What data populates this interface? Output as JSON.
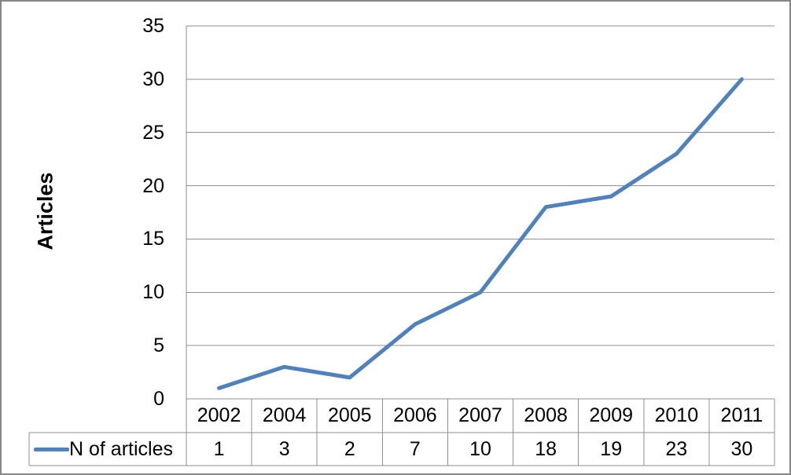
{
  "chart_data": {
    "type": "line",
    "title": "",
    "xlabel": "",
    "ylabel": "Articles",
    "categories": [
      "2002",
      "2004",
      "2005",
      "2006",
      "2007",
      "2008",
      "2009",
      "2010",
      "2011"
    ],
    "series": [
      {
        "name": "N of articles",
        "values": [
          1,
          3,
          2,
          7,
          10,
          18,
          19,
          23,
          30
        ]
      }
    ],
    "ylim": [
      0,
      35
    ],
    "yticks": [
      0,
      5,
      10,
      15,
      20,
      25,
      30,
      35
    ],
    "grid": "horizontal",
    "legend_position": "data-table-left",
    "line_color": "#4F81BD",
    "gridline_color": "#8F8F8F",
    "axis_text_color": "#000000"
  }
}
